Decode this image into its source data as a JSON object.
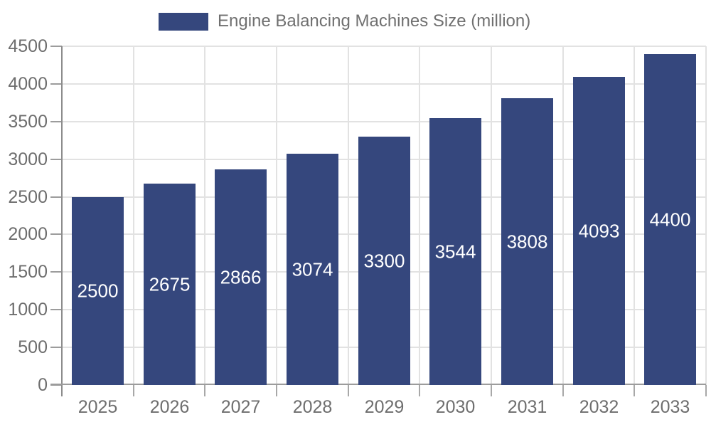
{
  "chart_data": {
    "type": "bar",
    "title": "Engine Balancing Machines Size (million)",
    "categories": [
      "2025",
      "2026",
      "2027",
      "2028",
      "2029",
      "2030",
      "2031",
      "2032",
      "2033"
    ],
    "values": [
      2500,
      2675,
      2866,
      3074,
      3300,
      3544,
      3808,
      4093,
      4400
    ],
    "series": [
      {
        "name": "Engine Balancing Machines Size (million)",
        "values": [
          2500,
          2675,
          2866,
          3074,
          3300,
          3544,
          3808,
          4093,
          4400
        ]
      }
    ],
    "xlabel": "",
    "ylabel": "",
    "ylim": [
      0,
      4500
    ],
    "yticks": [
      0,
      500,
      1000,
      1500,
      2000,
      2500,
      3000,
      3500,
      4000,
      4500
    ],
    "grid": true,
    "legend_position": "top",
    "bar_labels_visible": true,
    "colors": {
      "bar": "#35477D",
      "bar_label": "#FFFFFF",
      "title": "#707070",
      "axis_label": "#6E6E6E",
      "gridline": "#E2E2E2",
      "y_axis_line": "#8C8C8C",
      "x_axis_line": "#9C9C9C",
      "tick": "#A8A8A8",
      "background": "#FFFFFF"
    }
  }
}
